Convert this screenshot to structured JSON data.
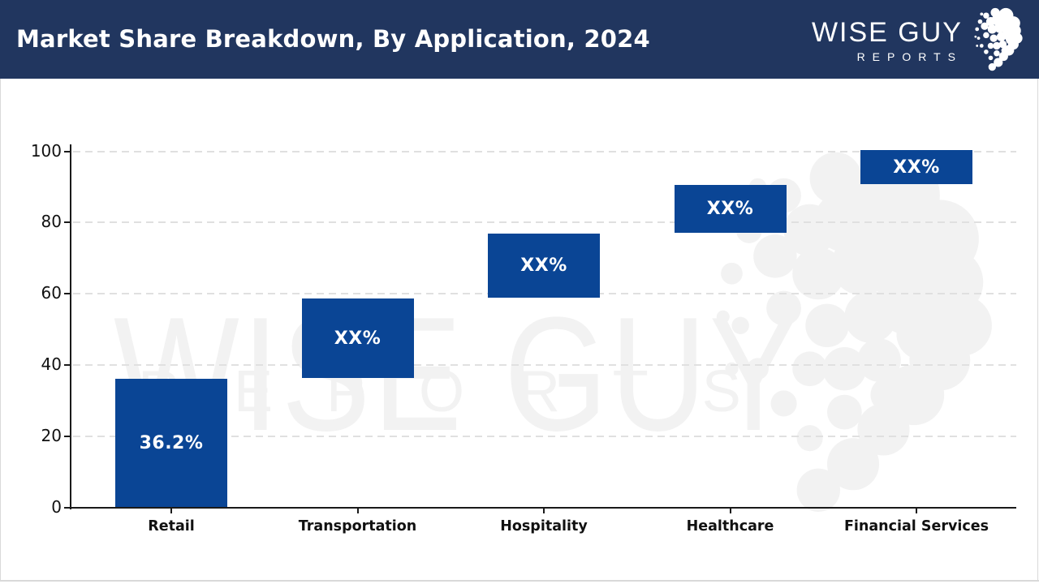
{
  "header": {
    "title": "Market Share Breakdown, By Application, 2024",
    "logo": {
      "line1": "WISE GUY",
      "line2": "REPORTS"
    }
  },
  "watermark": {
    "line1": "WISE GUY",
    "line2": "REPORTS"
  },
  "colors": {
    "header_bg": "#21365f",
    "bar": "#0a4595",
    "bar_label": "#ffffff",
    "gridline": "#e0e0e0",
    "axis": "#1a1a1a",
    "watermark": "#f2f2f2",
    "frame": "#d9d9d9"
  },
  "chart_data": {
    "type": "bar",
    "subtype": "waterfall",
    "title": "Market Share Breakdown, By Application, 2024",
    "xlabel": "",
    "ylabel": "",
    "ylim": [
      0,
      105
    ],
    "yticks": [
      0,
      20,
      40,
      60,
      80,
      100
    ],
    "grid": "horizontal-dashed",
    "legend": "none",
    "categories": [
      "Retail",
      "Transportation",
      "Hospitality",
      "Healthcare",
      "Financial Services"
    ],
    "segments": [
      {
        "category": "Retail",
        "start": 0,
        "end": 36.2,
        "label": "36.2%"
      },
      {
        "category": "Transportation",
        "start": 36.3,
        "end": 58.7,
        "label": "XX%"
      },
      {
        "category": "Hospitality",
        "start": 58.9,
        "end": 76.8,
        "label": "XX%"
      },
      {
        "category": "Healthcare",
        "start": 77.1,
        "end": 90.6,
        "label": "XX%"
      },
      {
        "category": "Financial Services",
        "start": 90.8,
        "end": 100.3,
        "label": "XX%"
      }
    ]
  }
}
